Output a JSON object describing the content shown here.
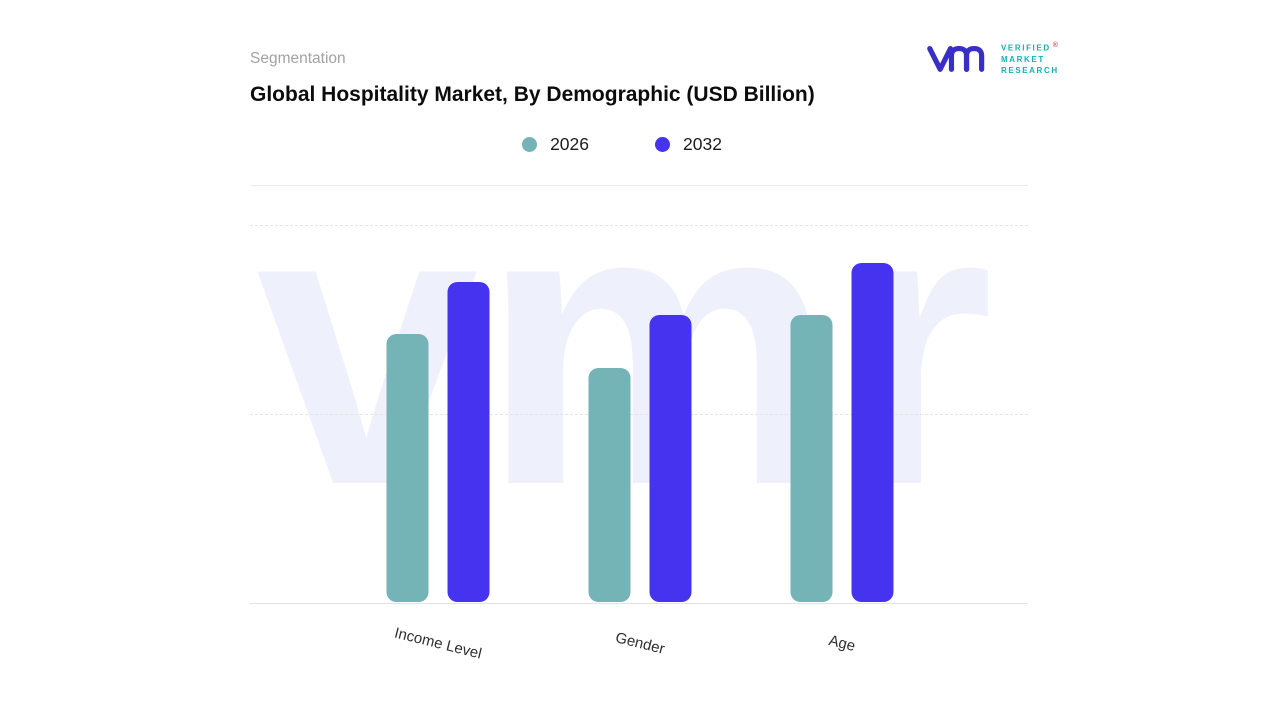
{
  "header": {
    "eyebrow": "Segmentation",
    "title": "Global Hospitality Market, By Demographic (USD Billion)"
  },
  "logo": {
    "line1": "VERIFIED",
    "line2": "MARKET",
    "line3": "RESEARCH",
    "registered": "®",
    "teal": "#14b0b5",
    "indigo": "#3a2ec9"
  },
  "watermark": "vmr",
  "chart_data": {
    "type": "bar",
    "title": "Global Hospitality Market, By Demographic (USD Billion)",
    "categories": [
      "Income Level",
      "Gender",
      "Age"
    ],
    "series": [
      {
        "name": "2026",
        "color": "#74b3b6",
        "values": [
          71,
          62,
          76
        ]
      },
      {
        "name": "2032",
        "color": "#4633f0",
        "values": [
          85,
          76,
          90
        ]
      }
    ],
    "xlabel": "",
    "ylabel": "",
    "ylim": [
      0,
      100
    ],
    "grid": "dashed-horizontal",
    "legend_position": "top-center"
  }
}
